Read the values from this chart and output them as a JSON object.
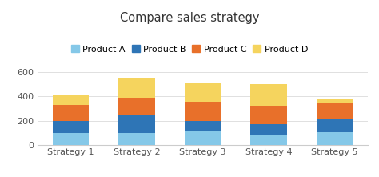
{
  "title": "Compare sales strategy",
  "categories": [
    "Strategy 1",
    "Strategy 2",
    "Strategy 3",
    "Strategy 4",
    "Strategy 5"
  ],
  "products": [
    "Product A",
    "Product B",
    "Product C",
    "Product D"
  ],
  "values": {
    "Product A": [
      100,
      100,
      120,
      80,
      110
    ],
    "Product B": [
      100,
      150,
      80,
      90,
      110
    ],
    "Product C": [
      130,
      140,
      155,
      155,
      130
    ],
    "Product D": [
      80,
      155,
      150,
      175,
      25
    ]
  },
  "colors": {
    "Product A": "#85C8E8",
    "Product B": "#2E75B6",
    "Product C": "#E8702A",
    "Product D": "#F5D45E"
  },
  "ylim": [
    0,
    640
  ],
  "yticks": [
    0,
    200,
    400,
    600
  ],
  "background_color": "#FFFFFF",
  "title_fontsize": 10.5,
  "tick_fontsize": 8,
  "legend_fontsize": 8
}
